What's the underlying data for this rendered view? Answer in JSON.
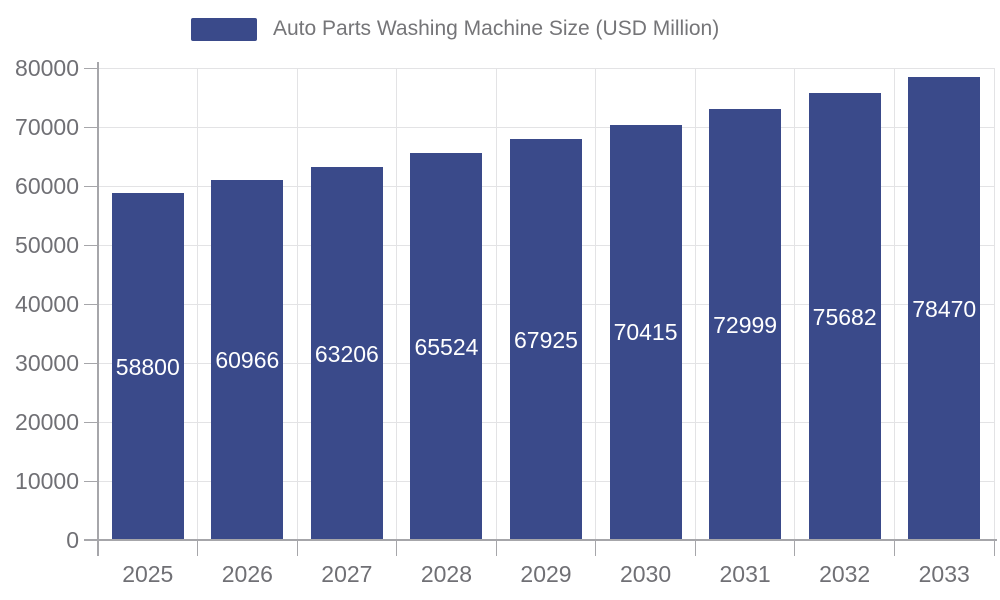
{
  "chart_data": {
    "type": "bar",
    "title": "Auto Parts Washing Machine Size (USD Million)",
    "legend": [
      "Auto Parts Washing Machine Size (USD Million)"
    ],
    "legend_position": "top",
    "categories": [
      "2025",
      "2026",
      "2027",
      "2028",
      "2029",
      "2030",
      "2031",
      "2032",
      "2033"
    ],
    "series": [
      {
        "name": "Auto Parts Washing Machine Size (USD Million)",
        "values": [
          58800,
          60966,
          63206,
          65524,
          67925,
          70415,
          72999,
          75682,
          78470
        ]
      }
    ],
    "values": [
      58800,
      60966,
      63206,
      65524,
      67925,
      70415,
      72999,
      75682,
      78470
    ],
    "bar_value_labels": [
      "58800",
      "60966",
      "63206",
      "65524",
      "67925",
      "70415",
      "72999",
      "75682",
      "78470"
    ],
    "xlabel": "",
    "ylabel": "",
    "ylim": [
      0,
      80000
    ],
    "yticks": [
      0,
      10000,
      20000,
      30000,
      40000,
      50000,
      60000,
      70000,
      80000
    ],
    "grid": true,
    "colors": {
      "bar": "#3A4A8A",
      "bar_label": "#FFFFFF",
      "grid_line": "#E3E3E5",
      "axis_line": "#A6A6AA",
      "tick_label": "#707075",
      "legend_text": "#757578",
      "background": "#FFFFFF"
    }
  }
}
